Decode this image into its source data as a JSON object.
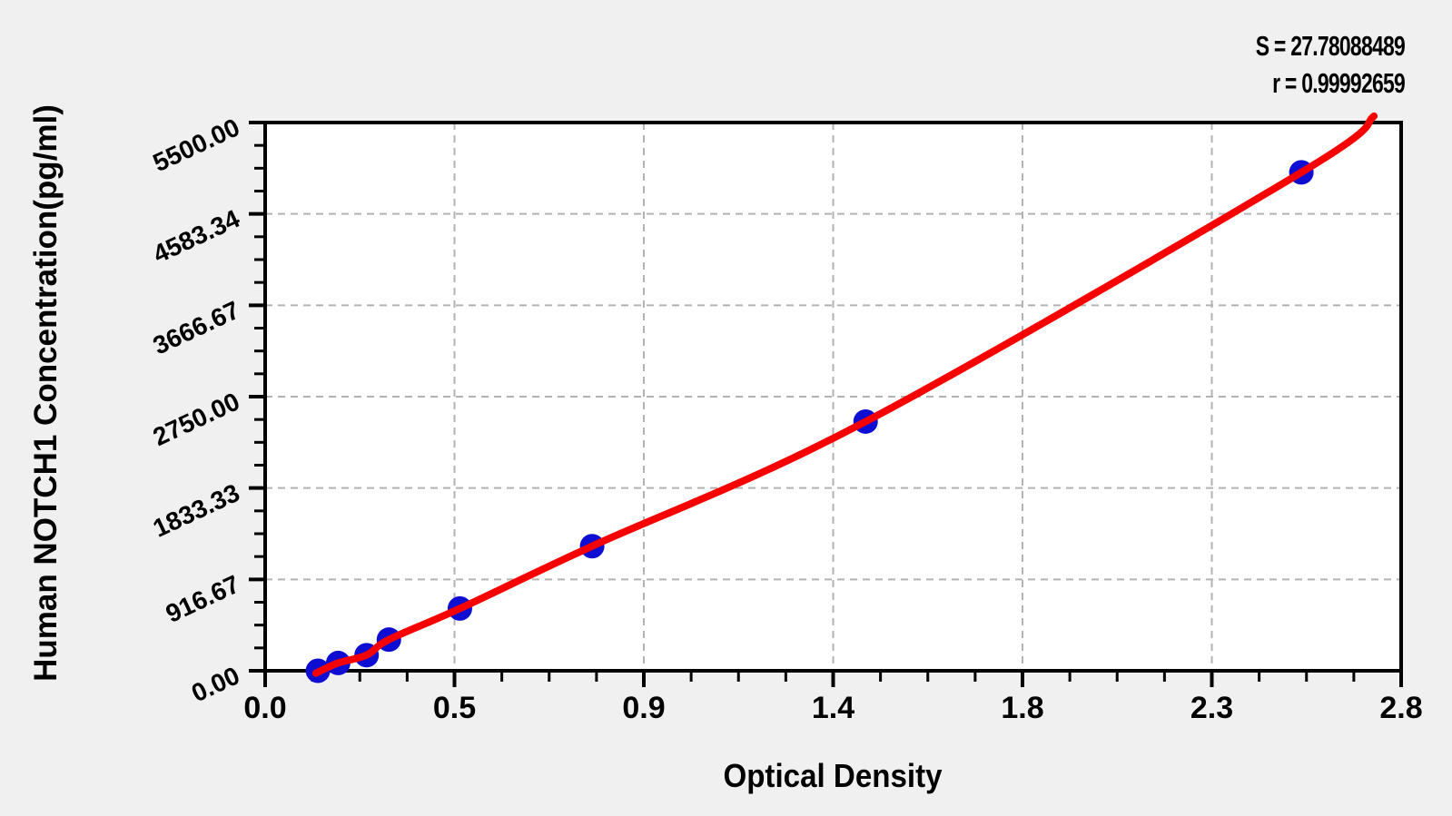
{
  "stats": {
    "s_line": "S = 27.78088489",
    "r_line": "r = 0.99992659"
  },
  "chart_data": {
    "type": "scatter",
    "title": "",
    "xlabel": "Optical Density",
    "ylabel": "Human NOTCH1 Concentration(pg/ml)",
    "x_range": [
      0,
      2.8
    ],
    "y_range": [
      0,
      5500
    ],
    "x_tick_labels": [
      "0.0",
      "0.5",
      "0.9",
      "1.4",
      "1.8",
      "2.3",
      "2.8"
    ],
    "y_tick_labels": [
      "0.00",
      "916.67",
      "1833.33",
      "2750.00",
      "3666.67",
      "4583.34",
      "5500.00"
    ],
    "minor_ticks_per_interval": 3,
    "grid": "dashed gray gridlines at interior major ticks only",
    "legend": "none",
    "fit": {
      "S": 27.78088489,
      "r": 0.99992659,
      "curve": "power-law standard curve fit"
    },
    "points": [
      {
        "od": 0.13,
        "conc": 0
      },
      {
        "od": 0.18,
        "conc": 78.1
      },
      {
        "od": 0.25,
        "conc": 156.3
      },
      {
        "od": 0.305,
        "conc": 312.5
      },
      {
        "od": 0.48,
        "conc": 625
      },
      {
        "od": 0.806,
        "conc": 1250
      },
      {
        "od": 1.48,
        "conc": 2500
      },
      {
        "od": 2.554,
        "conc": 5000
      }
    ],
    "curve_points": [
      [
        0.125,
        -25
      ],
      [
        0.18,
        78.1
      ],
      [
        0.25,
        156.3
      ],
      [
        0.305,
        312.5
      ],
      [
        0.48,
        625
      ],
      [
        0.806,
        1250
      ],
      [
        1.48,
        2500
      ],
      [
        2.554,
        5000
      ],
      [
        2.733,
        5565
      ]
    ],
    "colors": {
      "curve": "#f80000",
      "points": "#0e0ed2",
      "grid": "#b3b3b3",
      "axis": "#000000",
      "plot_bg": "#ffffff",
      "page_bg": "#f0f0f0"
    }
  }
}
